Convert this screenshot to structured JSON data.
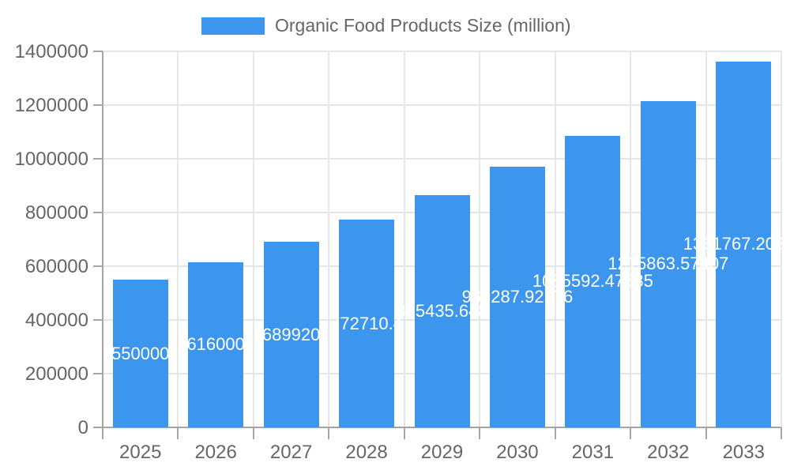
{
  "chart_data": {
    "type": "bar",
    "legend": "Organic Food Products Size (million)",
    "legend_position": "top",
    "categories": [
      "2025",
      "2026",
      "2027",
      "2028",
      "2029",
      "2030",
      "2031",
      "2032",
      "2033"
    ],
    "values": [
      550000,
      616000,
      689920,
      772710.4,
      865435.648,
      969287.92576,
      1085592.47685,
      1215863.57407,
      1361767.20296
    ],
    "bar_labels": [
      "550000",
      "616000",
      "689920",
      "772710.4",
      "865435.648",
      "969287.92576",
      "1085592.47685",
      "1215863.57407",
      "1361767.20296"
    ],
    "y_ticks": [
      0,
      200000,
      400000,
      600000,
      800000,
      1000000,
      1200000,
      1400000
    ],
    "y_tick_labels": [
      "0",
      "200000",
      "400000",
      "600000",
      "800000",
      "1000000",
      "1200000",
      "1400000"
    ],
    "ylim": [
      0,
      1400000
    ],
    "xlabel": "",
    "ylabel": "",
    "grid": true,
    "colors": {
      "bar": "#3D96EE",
      "grid": "#e6e6e6",
      "axis": "#a6a6a6",
      "text": "#666666",
      "bar_label_text": "#ffffff"
    }
  }
}
